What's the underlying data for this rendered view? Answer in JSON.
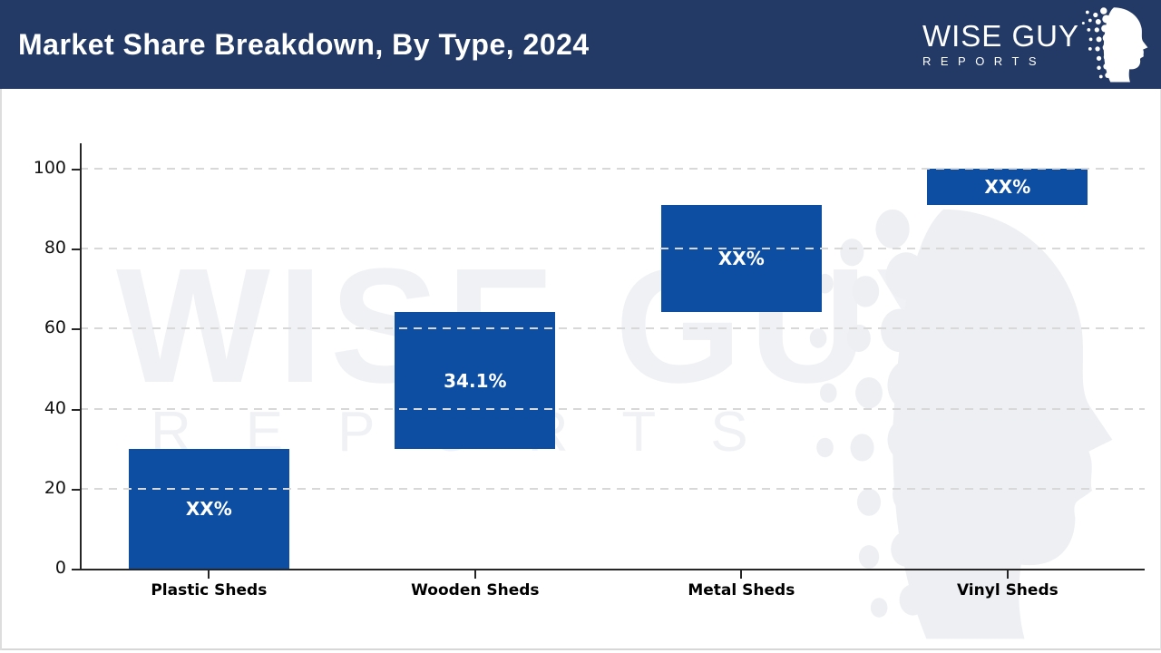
{
  "header": {
    "title": "Market Share Breakdown, By Type, 2024",
    "brand": {
      "name": "WISE GUY",
      "sub": "REPORTS"
    }
  },
  "watermark": {
    "name": "WISE GUY",
    "sub": "REPORTS"
  },
  "chart_data": {
    "type": "bar",
    "variant": "waterfall",
    "title": "Market Share Breakdown, By Type, 2024",
    "unit": "percent market share",
    "categories": [
      "Plastic Sheds",
      "Wooden Sheds",
      "Metal Sheds",
      "Vinyl Sheds"
    ],
    "segments": [
      {
        "category": "Plastic Sheds",
        "start": 0,
        "end": 30,
        "label": "XX%"
      },
      {
        "category": "Wooden Sheds",
        "start": 30,
        "end": 64.1,
        "value": 34.1,
        "label": "34.1%"
      },
      {
        "category": "Metal Sheds",
        "start": 64.1,
        "end": 91,
        "label": "XX%"
      },
      {
        "category": "Vinyl Sheds",
        "start": 91,
        "end": 100,
        "label": "XX%"
      }
    ],
    "yticks": [
      0,
      20,
      40,
      60,
      80,
      100
    ],
    "ylim": [
      0,
      107
    ],
    "grid": "horizontal-dashed",
    "legend": "none",
    "bar_color": "#0D4EA3"
  },
  "colors": {
    "header_bg": "#243A66",
    "bar": "#0D4EA3",
    "grid": "#D8D8D8",
    "axis": "#262626",
    "bar_label": "#FFFFFF",
    "watermark": "#F0F1F4"
  }
}
